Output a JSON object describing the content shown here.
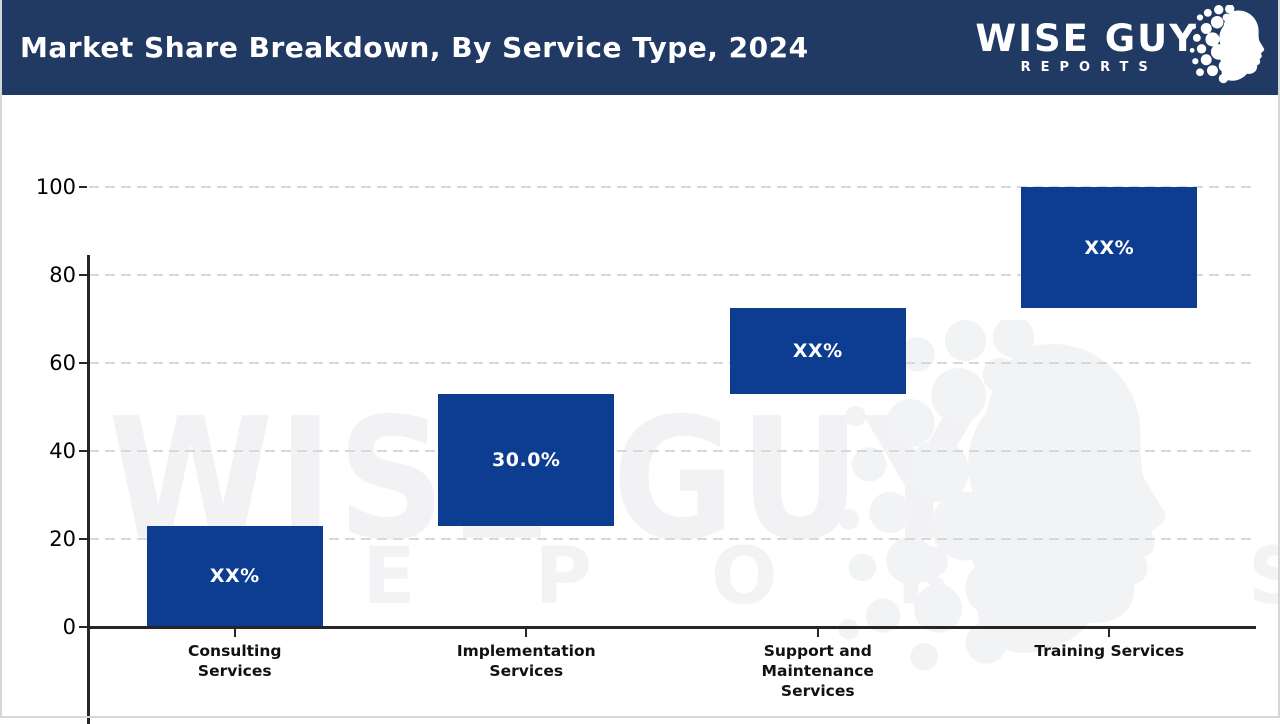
{
  "header": {
    "title": "Market Share Breakdown, By Service Type, 2024",
    "bg_color": "#213a64",
    "logo": {
      "line1": "WISE GUY",
      "line2": "REPORTS"
    }
  },
  "watermark": {
    "line1": "WISE GUY",
    "line2": "REPORTS"
  },
  "colors": {
    "bar": "#0d3d91",
    "bar_label": "#ffffff",
    "axis": "#262626",
    "grid": "#d9d9d9",
    "watermark": "#f2f2f4",
    "header_bg": "#213a64",
    "frame_border": "#d6d6d6"
  },
  "chart_data": {
    "type": "bar",
    "subtype": "waterfall",
    "title": "Market Share Breakdown, By Service Type, 2024",
    "xlabel": "",
    "ylabel": "",
    "categories": [
      [
        "Consulting",
        "Services"
      ],
      [
        "Implementation",
        "Services"
      ],
      [
        "Support and",
        "Maintenance",
        "Services"
      ],
      [
        "Training Services"
      ]
    ],
    "segments": [
      {
        "start": 0,
        "end": 23,
        "label": "XX%"
      },
      {
        "start": 23,
        "end": 53,
        "label": "30.0%"
      },
      {
        "start": 53,
        "end": 72.5,
        "label": "XX%"
      },
      {
        "start": 72.5,
        "end": 100,
        "label": "XX%"
      }
    ],
    "yticks": [
      0,
      20,
      40,
      60,
      80,
      100
    ],
    "ylim": [
      0,
      105
    ],
    "grid": "horizontal-dashed",
    "legend": "none"
  }
}
